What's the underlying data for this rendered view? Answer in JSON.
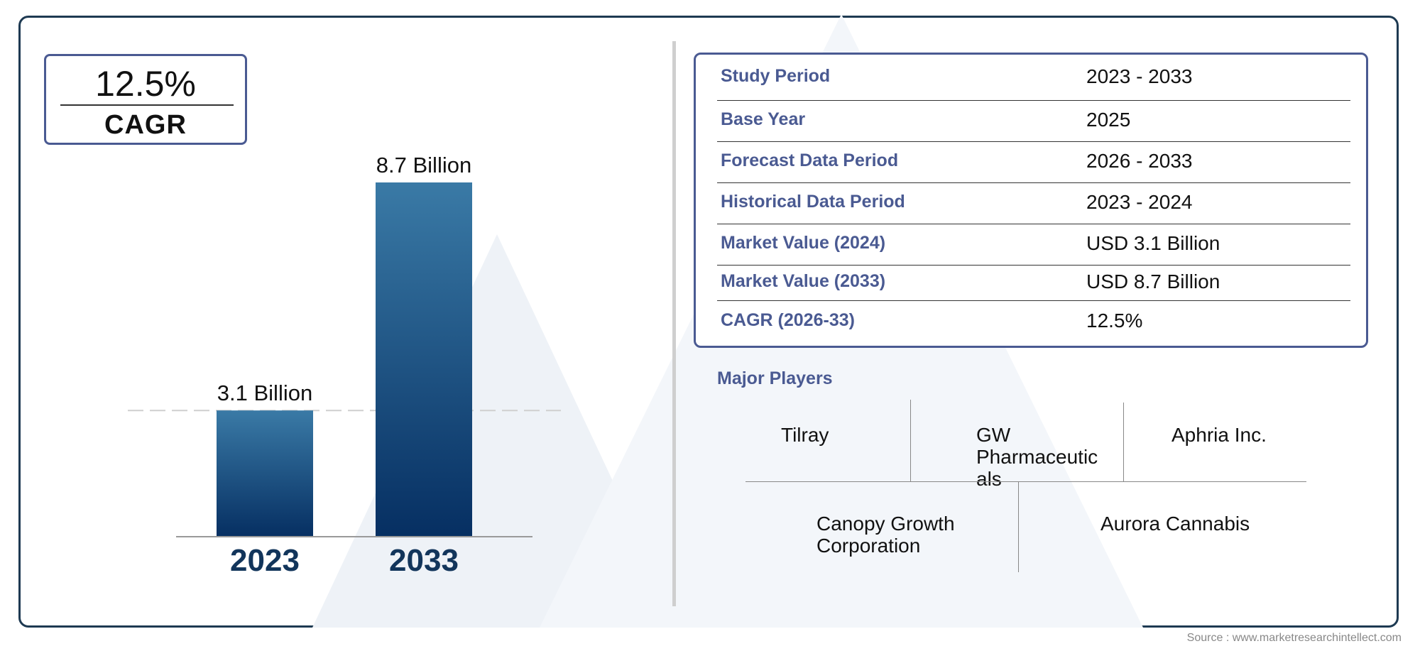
{
  "cagr_badge": {
    "value": "12.5%",
    "label": "CAGR"
  },
  "chart_data": {
    "type": "bar",
    "categories": [
      "2023",
      "2033"
    ],
    "values": [
      3.1,
      8.7
    ],
    "data_labels": [
      "3.1 Billion",
      "8.7 Billion"
    ],
    "unit": "Billion",
    "reference_line": 3.1,
    "colors": {
      "bar_top": "#3a7aa6",
      "bar_bottom": "#062f62",
      "category_label": "#12355b"
    }
  },
  "info_table": {
    "rows": [
      {
        "label": "Study Period",
        "value": "2023 - 2033"
      },
      {
        "label": "Base Year",
        "value": "2025"
      },
      {
        "label": "Forecast Data Period",
        "value": "2026 - 2033"
      },
      {
        "label": "Historical Data Period",
        "value": "2023 - 2024"
      },
      {
        "label": "Market Value (2024)",
        "value": "USD 3.1 Billion"
      },
      {
        "label": "Market Value (2033)",
        "value": "USD 8.7 Billion"
      },
      {
        "label": "CAGR (2026-33)",
        "value": "12.5%"
      }
    ]
  },
  "major_players": {
    "title": "Major Players",
    "players": [
      "Tilray",
      "GW Pharmaceutic als",
      "Aphria Inc.",
      "Canopy Growth Corporation",
      "Aurora Cannabis"
    ],
    "players_lines": [
      [
        "Tilray"
      ],
      [
        "GW",
        "Pharmaceutic",
        "als"
      ],
      [
        "Aphria Inc."
      ],
      [
        "Canopy Growth",
        "Corporation"
      ],
      [
        "Aurora Cannabis"
      ]
    ]
  },
  "source": "Source : www.marketresearchintellect.com",
  "colors": {
    "accent": "#4a5a92",
    "frame": "#1e3a52"
  }
}
